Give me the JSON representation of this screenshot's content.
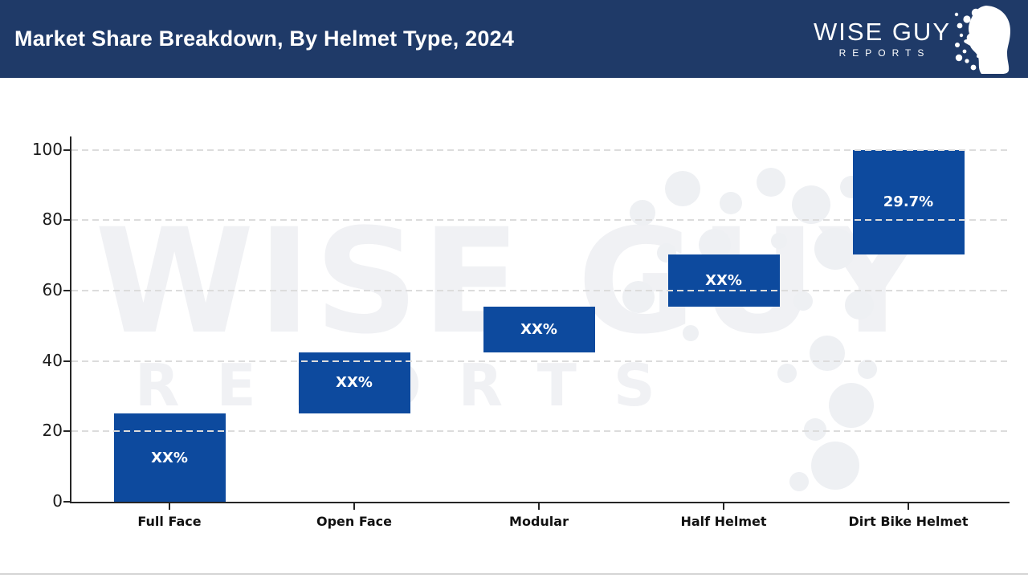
{
  "header": {
    "title": "Market Share Breakdown, By Helmet Type, 2024",
    "bg_color": "#1f3a68",
    "logo": {
      "wordmark": "WISE GUY",
      "subtitle": "REPORTS"
    }
  },
  "watermark": {
    "line1": "WISE GUY",
    "line2": "REPORTS"
  },
  "chart_data": {
    "type": "bar",
    "subtype": "waterfall",
    "title": "Market Share Breakdown, By Helmet Type, 2024",
    "categories": [
      "Full Face",
      "Open Face",
      "Modular",
      "Half Helmet",
      "Dirt Bike Helmet"
    ],
    "bars": [
      {
        "category": "Full Face",
        "start": 0,
        "end": 25,
        "label": "XX%"
      },
      {
        "category": "Open Face",
        "start": 25,
        "end": 42.5,
        "label": "XX%"
      },
      {
        "category": "Modular",
        "start": 42.5,
        "end": 55.5,
        "label": "XX%"
      },
      {
        "category": "Half Helmet",
        "start": 55.5,
        "end": 70.3,
        "label": "XX%"
      },
      {
        "category": "Dirt Bike Helmet",
        "start": 70.3,
        "end": 100,
        "label": "29.7%"
      }
    ],
    "yticks": [
      0,
      20,
      40,
      60,
      80,
      100
    ],
    "ylim": [
      0,
      104
    ],
    "grid": "horizontal-dashed",
    "legend": "none",
    "colors": {
      "bar": "#0d4a9e",
      "grid": "#dcdcdc",
      "axis": "#262626",
      "bar_label": "#ffffff",
      "tick_label": "#1a1a1a"
    }
  }
}
